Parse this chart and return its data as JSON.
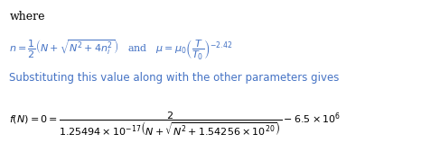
{
  "background_color": "#ffffff",
  "text_color": "#000000",
  "blue_color": "#4472c4",
  "figsize": [
    4.66,
    1.59
  ],
  "dpi": 100,
  "line1": "where",
  "line2_math": "$n = \\dfrac{1}{2}\\left(N + \\sqrt{N^2 + 4n_i^2}\\right)$   and   $\\mu = \\mu_0\\left(\\dfrac{T}{T_0}\\right)^{-2.42}$",
  "line3": "Substituting this value along with the other parameters gives",
  "line4_math": "$f(N) = 0 = \\dfrac{2}{1.25494 \\times 10^{-17}\\left(N + \\sqrt{N^2 + 1.54256 \\times 10^{20}}\\right)} - 6.5 \\times 10^6$"
}
